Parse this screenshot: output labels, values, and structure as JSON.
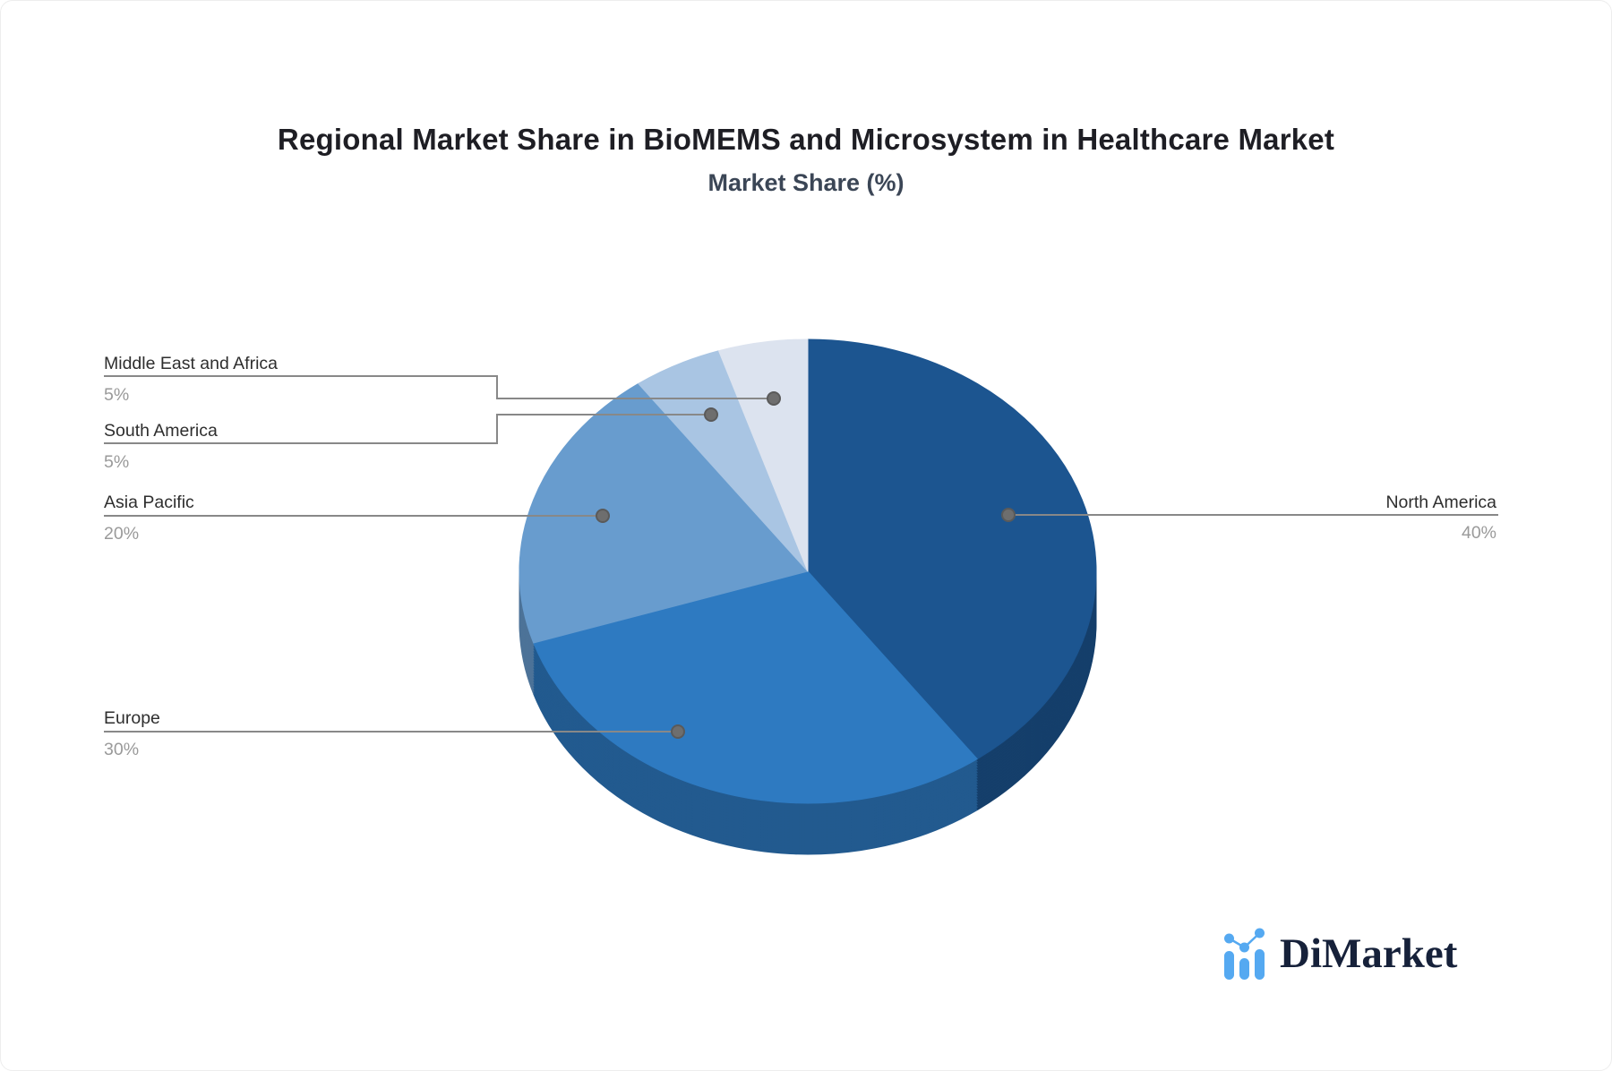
{
  "page": {
    "background": "#ffffff",
    "border_color": "#ededed"
  },
  "title": {
    "text": "Regional Market Share in BioMEMS and Microsystem in Healthcare Market",
    "subtitle": "Market Share (%)"
  },
  "chart_data": {
    "type": "pie",
    "style": "3d",
    "title": "Regional Market Share in BioMEMS and Microsystem in Healthcare Market",
    "subtitle": "Market Share (%)",
    "unit": "%",
    "start_angle": "12-o-clock",
    "direction": "clockwise",
    "slices": [
      {
        "label": "North America",
        "value": 40,
        "value_label": "40%",
        "color": "#1C5590"
      },
      {
        "label": "Europe",
        "value": 30,
        "value_label": "30%",
        "color": "#2E7AC1"
      },
      {
        "label": "Asia Pacific",
        "value": 20,
        "value_label": "20%",
        "color": "#689CCE"
      },
      {
        "label": "South America",
        "value": 5,
        "value_label": "5%",
        "color": "#A9C5E3"
      },
      {
        "label": "Middle East and Africa",
        "value": 5,
        "value_label": "5%",
        "color": "#DCE3EF"
      }
    ],
    "callout_line_color": "#888888",
    "callout_dot_color": "#6e6e6e",
    "label_text_color": "#2e2e2e",
    "value_text_color": "#9a9a9a",
    "legend_position": "callout-labels"
  },
  "logo": {
    "text": "DiMarket",
    "text_color": "#16213a",
    "icon": "bar-line-chart-logo",
    "icon_color": "#55A9F1"
  }
}
